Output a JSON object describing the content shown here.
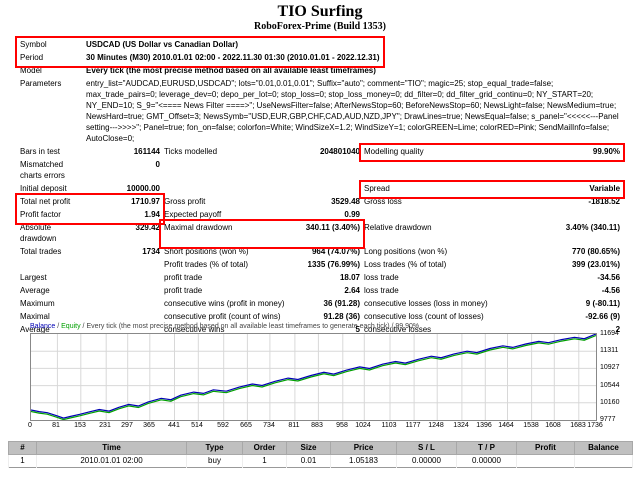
{
  "title": "TIO Surfing",
  "subtitle": "RoboForex-Prime (Build 1353)",
  "colors": {
    "annotation": "#ff0000",
    "balance_line": "#0000b4",
    "equity_line": "#00a000",
    "grid": "#d8d8d8",
    "table_header_bg": "#c0c0c0"
  },
  "stats": {
    "rows": [
      [
        {
          "t": "Symbol",
          "k": "l",
          "hl": "b1"
        },
        {
          "t": "USDCAD (US Dollar vs Canadian Dollar)",
          "k": "vl",
          "cs": 5,
          "hl": "b1"
        }
      ],
      [
        {
          "t": "Period",
          "k": "l",
          "hl": "b1"
        },
        {
          "t": "30 Minutes (M30) 2010.01.01 02:00 - 2022.11.30 01:30 (2010.01.01 - 2022.12.31)",
          "k": "vl",
          "cs": 5,
          "hl": "b1"
        }
      ],
      [
        {
          "t": "Model",
          "k": "l"
        },
        {
          "t": "Every tick (the most precise method based on all available least timeframes)",
          "k": "vl",
          "cs": 5
        }
      ],
      [
        {
          "t": "Parameters",
          "k": "l"
        },
        {
          "t": "entry_list=\"AUDCAD,EURUSD,USDCAD\"; lots=\"0.01,0.01,0.01\"; Suffix=\"auto\"; comment=\"TIO\"; magic=25; stop_equal_trade=false; max_trade_pairs=0; leverage_dev=0; depo_per_lot=0; stop_loss=0; stop_loss_money=0; dd_filter=0; dd_filter_grid_continu=0; NY_START=20; NY_END=10; S_9=\"<==== News Filter ====>\"; UseNewsFilter=false; AfterNewsStop=60; BeforeNewsStop=60; NewsLight=false; NewsMedium=true; NewsHard=true; GMT_Offset=3; NewsSymb=\"USD,EUR,GBP,CHF,CAD,AUD,NZD,JPY\"; DrawLines=true; NewsEqual=false; s_panel=\"<<<<<---Panel setting--->>>>\"; Panel=true; fon_on=false; colorfon=White; WindSizeX=1.2; WindSizeY=1; colorGREEN=Lime; colorRED=Pink; SendMailInfo=false; AutoClose=0;",
          "k": "p",
          "cs": 5
        }
      ],
      [
        {
          "t": "Bars in test",
          "k": "l"
        },
        {
          "t": "161144",
          "k": "v"
        },
        {
          "t": "Ticks modelled",
          "k": "l"
        },
        {
          "t": "204801040",
          "k": "v"
        },
        {
          "t": "Modelling quality",
          "k": "l",
          "hl": "b2"
        },
        {
          "t": "99.90%",
          "k": "v",
          "hl": "b2"
        }
      ],
      [
        {
          "t": "Mismatched charts errors",
          "k": "l"
        },
        {
          "t": "0",
          "k": "v"
        },
        {
          "t": "",
          "k": "l",
          "cs": 4
        }
      ],
      [
        {
          "t": "Initial deposit",
          "k": "l"
        },
        {
          "t": "10000.00",
          "k": "v"
        },
        {
          "t": "",
          "k": "l"
        },
        {
          "t": "",
          "k": "v"
        },
        {
          "t": "Spread",
          "k": "l",
          "hl": "b3"
        },
        {
          "t": "Variable",
          "k": "v",
          "hl": "b3"
        }
      ],
      [
        {
          "t": "Total net profit",
          "k": "l",
          "hl": "b4"
        },
        {
          "t": "1710.97",
          "k": "v",
          "hl": "b4"
        },
        {
          "t": "Gross profit",
          "k": "l"
        },
        {
          "t": "3529.48",
          "k": "v"
        },
        {
          "t": "Gross loss",
          "k": "l"
        },
        {
          "t": "-1818.52",
          "k": "v"
        }
      ],
      [
        {
          "t": "Profit factor",
          "k": "l",
          "hl": "b4"
        },
        {
          "t": "1.94",
          "k": "v",
          "hl": "b4"
        },
        {
          "t": "Expected payoff",
          "k": "l"
        },
        {
          "t": "0.99",
          "k": "v"
        },
        {
          "t": "",
          "k": "l"
        },
        {
          "t": "",
          "k": "v"
        }
      ],
      [
        {
          "t": "Absolute drawdown",
          "k": "l"
        },
        {
          "t": "329.42",
          "k": "v"
        },
        {
          "t": "Maximal drawdown",
          "k": "l",
          "hl": "b5"
        },
        {
          "t": "340.11 (3.40%)",
          "k": "v",
          "hl": "b5"
        },
        {
          "t": "Relative drawdown",
          "k": "l"
        },
        {
          "t": "3.40% (340.11)",
          "k": "v"
        }
      ],
      [
        {
          "t": "Total trades",
          "k": "l"
        },
        {
          "t": "1734",
          "k": "v"
        },
        {
          "t": "Short positions (won %)",
          "k": "l"
        },
        {
          "t": "964 (74.07%)",
          "k": "v"
        },
        {
          "t": "Long positions (won %)",
          "k": "l"
        },
        {
          "t": "770 (80.65%)",
          "k": "v"
        }
      ],
      [
        {
          "t": "",
          "k": "l"
        },
        {
          "t": "",
          "k": "v"
        },
        {
          "t": "Profit trades (% of total)",
          "k": "l"
        },
        {
          "t": "1335 (76.99%)",
          "k": "v"
        },
        {
          "t": "Loss trades (% of total)",
          "k": "l"
        },
        {
          "t": "399 (23.01%)",
          "k": "v"
        }
      ],
      [
        {
          "t": "Largest",
          "k": "l"
        },
        {
          "t": "",
          "k": "v"
        },
        {
          "t": "profit trade",
          "k": "l"
        },
        {
          "t": "18.07",
          "k": "v"
        },
        {
          "t": "loss trade",
          "k": "l"
        },
        {
          "t": "-34.56",
          "k": "v"
        }
      ],
      [
        {
          "t": "Average",
          "k": "l"
        },
        {
          "t": "",
          "k": "v"
        },
        {
          "t": "profit trade",
          "k": "l"
        },
        {
          "t": "2.64",
          "k": "v"
        },
        {
          "t": "loss trade",
          "k": "l"
        },
        {
          "t": "-4.56",
          "k": "v"
        }
      ],
      [
        {
          "t": "Maximum",
          "k": "l"
        },
        {
          "t": "",
          "k": "v"
        },
        {
          "t": "consecutive wins (profit in money)",
          "k": "l"
        },
        {
          "t": "36 (91.28)",
          "k": "v"
        },
        {
          "t": "consecutive losses (loss in money)",
          "k": "l"
        },
        {
          "t": "9 (-80.11)",
          "k": "v"
        }
      ],
      [
        {
          "t": "Maximal",
          "k": "l"
        },
        {
          "t": "",
          "k": "v"
        },
        {
          "t": "consecutive profit (count of wins)",
          "k": "l"
        },
        {
          "t": "91.28 (36)",
          "k": "v"
        },
        {
          "t": "consecutive loss (count of losses)",
          "k": "l"
        },
        {
          "t": "-92.66 (9)",
          "k": "v"
        }
      ],
      [
        {
          "t": "Average",
          "k": "l"
        },
        {
          "t": "",
          "k": "v"
        },
        {
          "t": "consecutive wins",
          "k": "l"
        },
        {
          "t": "5",
          "k": "v"
        },
        {
          "t": "consecutive losses",
          "k": "l"
        },
        {
          "t": "2",
          "k": "v"
        }
      ]
    ]
  },
  "chart_data": {
    "type": "line",
    "legend_balance": "Balance",
    "legend_equity": "Equity",
    "sep": " / ",
    "caption_rest": " / Every tick (the most precise method based on all available least timeframes to generate each tick) / 99.90%",
    "xlim": [
      0,
      1736
    ],
    "ylim": [
      9777,
      11694
    ],
    "yticks": [
      11694,
      11311,
      10927,
      10544,
      10160,
      9777
    ],
    "xticks": [
      0,
      81,
      153,
      231,
      297,
      365,
      441,
      514,
      592,
      665,
      734,
      811,
      883,
      958,
      1024,
      1103,
      1177,
      1248,
      1324,
      1396,
      1464,
      1538,
      1608,
      1683,
      1736
    ],
    "series": [
      {
        "name": "Balance",
        "color": "#0000b4",
        "points": [
          [
            0,
            10000
          ],
          [
            25,
            9965
          ],
          [
            50,
            9940
          ],
          [
            80,
            9870
          ],
          [
            100,
            9820
          ],
          [
            120,
            9855
          ],
          [
            150,
            9905
          ],
          [
            180,
            9960
          ],
          [
            210,
            10010
          ],
          [
            240,
            9975
          ],
          [
            270,
            10060
          ],
          [
            300,
            10125
          ],
          [
            330,
            10090
          ],
          [
            360,
            10180
          ],
          [
            400,
            10260
          ],
          [
            430,
            10230
          ],
          [
            460,
            10330
          ],
          [
            500,
            10400
          ],
          [
            530,
            10370
          ],
          [
            560,
            10450
          ],
          [
            600,
            10420
          ],
          [
            640,
            10510
          ],
          [
            680,
            10580
          ],
          [
            710,
            10545
          ],
          [
            750,
            10640
          ],
          [
            790,
            10710
          ],
          [
            820,
            10680
          ],
          [
            860,
            10770
          ],
          [
            900,
            10840
          ],
          [
            930,
            10800
          ],
          [
            970,
            10890
          ],
          [
            1010,
            10960
          ],
          [
            1040,
            10925
          ],
          [
            1080,
            11020
          ],
          [
            1120,
            11080
          ],
          [
            1150,
            11045
          ],
          [
            1190,
            11130
          ],
          [
            1230,
            11200
          ],
          [
            1260,
            11165
          ],
          [
            1300,
            11250
          ],
          [
            1340,
            11310
          ],
          [
            1370,
            11280
          ],
          [
            1410,
            11370
          ],
          [
            1450,
            11430
          ],
          [
            1480,
            11395
          ],
          [
            1520,
            11470
          ],
          [
            1560,
            11530
          ],
          [
            1590,
            11500
          ],
          [
            1630,
            11570
          ],
          [
            1670,
            11620
          ],
          [
            1700,
            11590
          ],
          [
            1736,
            11694
          ]
        ]
      },
      {
        "name": "Equity",
        "color": "#00a000",
        "note": "overlaps balance line"
      }
    ]
  },
  "trades": {
    "headers": [
      "#",
      "Time",
      "Type",
      "Order",
      "Size",
      "Price",
      "S / L",
      "T / P",
      "Profit",
      "Balance"
    ],
    "rows": [
      [
        "1",
        "2010.01.01 02:00",
        "buy",
        "1",
        "0.01",
        "1.05183",
        "0.00000",
        "0.00000",
        "",
        ""
      ]
    ]
  }
}
